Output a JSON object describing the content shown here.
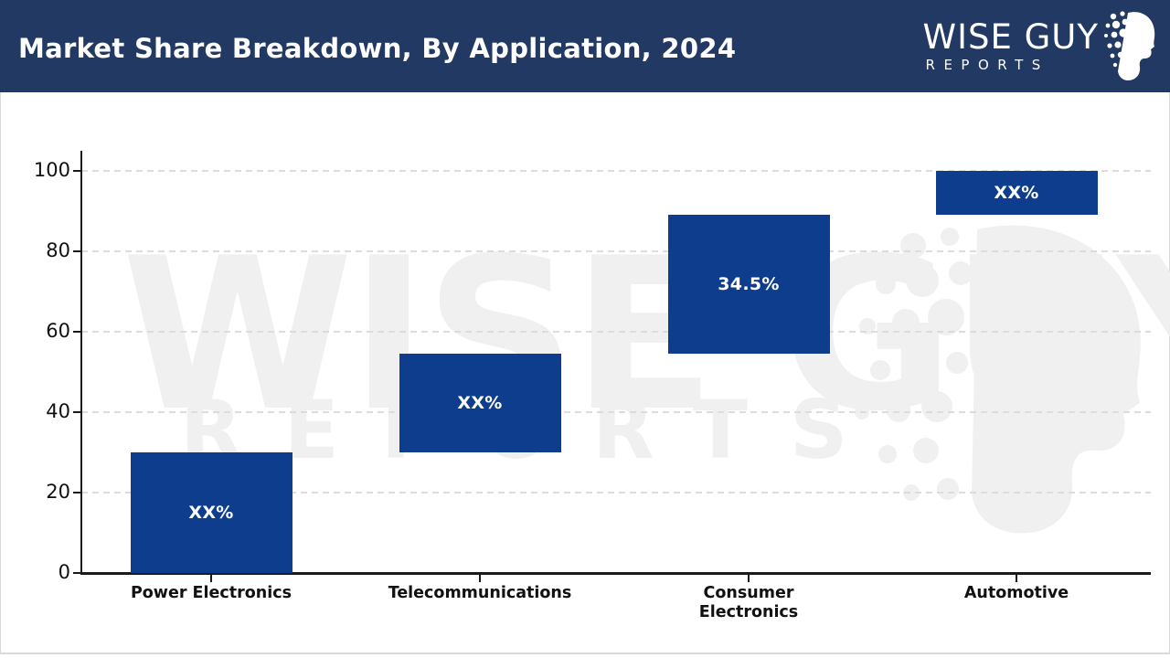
{
  "header": {
    "title": "Market Share Breakdown, By Application, 2024",
    "logo": {
      "line1": "WISE GUY",
      "line2": "REPORTS"
    }
  },
  "watermark": {
    "line1": "WISE GUY",
    "line2": "REPORTS"
  },
  "chart_data": {
    "type": "bar",
    "subtype": "waterfall-floating-bars",
    "title": "Market Share Breakdown, By Application, 2024",
    "categories": [
      "Power Electronics",
      "Telecommunications",
      "Consumer\nElectronics",
      "Automotive"
    ],
    "segments": [
      {
        "category": "Power Electronics",
        "start": 0,
        "end": 30,
        "label": "XX%"
      },
      {
        "category": "Telecommunications",
        "start": 30,
        "end": 54.5,
        "label": "XX%"
      },
      {
        "category": "Consumer Electronics",
        "start": 54.5,
        "end": 89,
        "label": "34.5%"
      },
      {
        "category": "Automotive",
        "start": 89,
        "end": 100,
        "label": "XX%"
      }
    ],
    "ylim": [
      0,
      100
    ],
    "yticks": [
      0,
      20,
      40,
      60,
      80,
      100
    ],
    "xlabel": "",
    "ylabel": "",
    "grid": "dashed-horizontal",
    "legend": "none",
    "bar_color": "#0d3d8c",
    "value_label_color": "#ffffff"
  },
  "colors": {
    "header_bg": "#223963",
    "bar": "#0d3d8c",
    "grid": "#dcdcdc",
    "axis": "#1a1a1a",
    "watermark": "#f0f0f1",
    "border": "#d9d9d9"
  }
}
